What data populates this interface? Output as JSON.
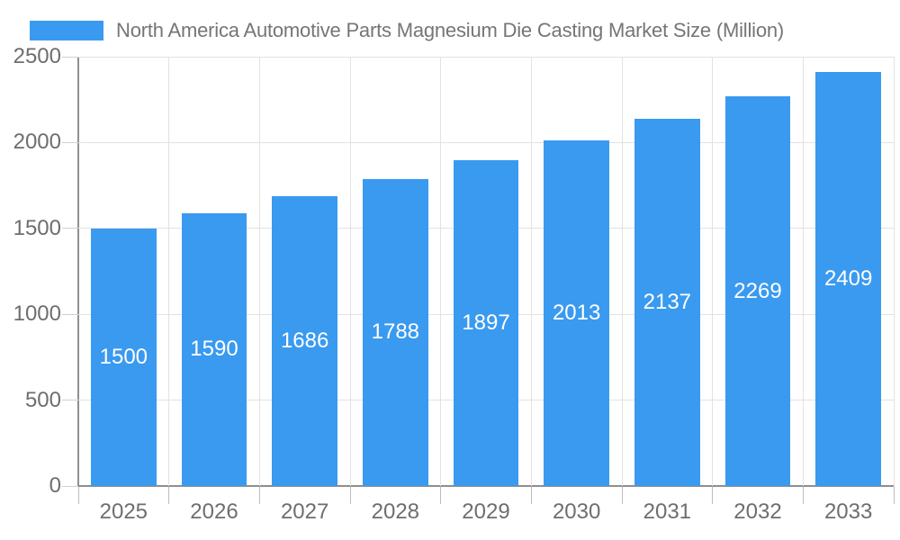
{
  "chart_data": {
    "type": "bar",
    "title": "North America Automotive Parts Magnesium Die Casting Market Size (Million)",
    "series_name": "North America Automotive Parts Magnesium Die Casting Market Size (Million)",
    "categories": [
      "2025",
      "2026",
      "2027",
      "2028",
      "2029",
      "2030",
      "2031",
      "2032",
      "2033"
    ],
    "values": [
      1500,
      1590,
      1686,
      1788,
      1897,
      2013,
      2137,
      2269,
      2409
    ],
    "xlabel": "",
    "ylabel": "",
    "ylim": [
      0,
      2500
    ],
    "y_ticks": [
      0,
      500,
      1000,
      1500,
      2000,
      2500
    ],
    "grid": true,
    "legend_position": "top-left",
    "value_labels_position": "inside-center",
    "colors": {
      "bar": "#3A9AEF",
      "grid_line": "#E2E2E2",
      "axis_line": "#8F8F8F",
      "tick_mark_y": "#CFCFCF",
      "tick_mark_x": "#BDBDBD",
      "tick_text": "#6E6E6E",
      "legend_text": "#757575",
      "value_label_text": "#FFFFFF",
      "background": "#FFFFFF"
    }
  }
}
